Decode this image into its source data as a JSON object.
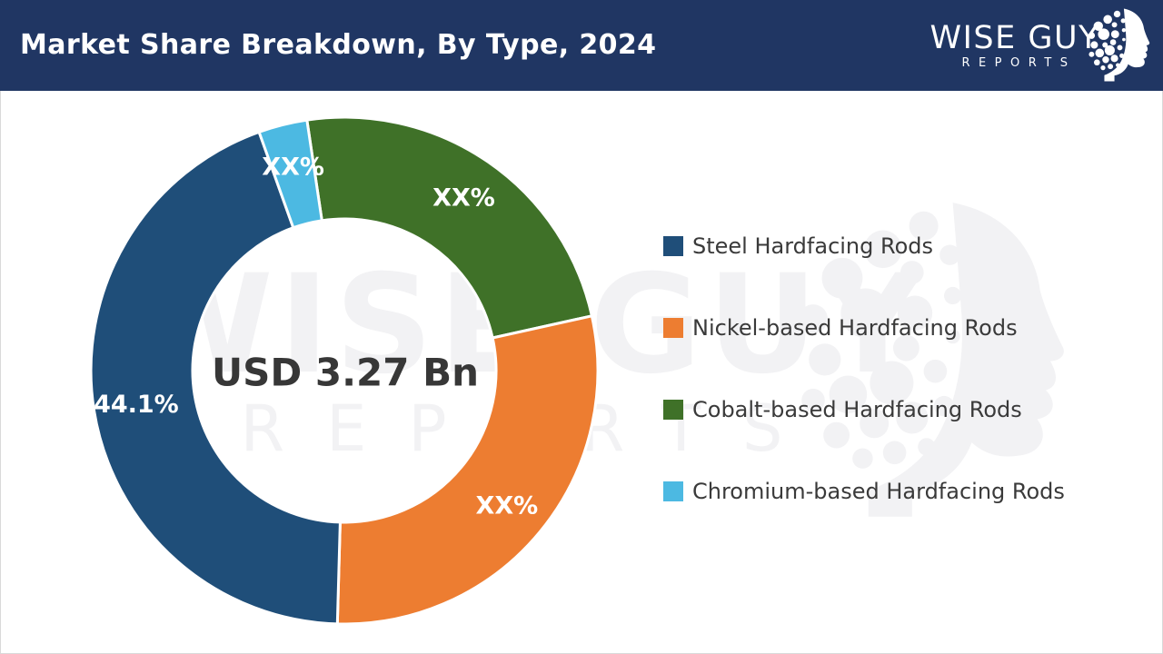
{
  "header": {
    "title": "Market Share Breakdown, By Type, 2024",
    "logo": {
      "line1": "WISE GUY",
      "line2": "REPORTS"
    }
  },
  "watermark": {
    "line1": "WISE GUY",
    "line2": "REPORTS"
  },
  "chart_data": {
    "type": "pie",
    "variant": "donut",
    "title": "Market Share Breakdown, By Type, 2024",
    "center_label": "USD 3.27 Bn",
    "rotation": "clockwise",
    "start_angle_clockwise_from_top_deg": -8.5,
    "legend_position": "right",
    "segments": [
      {
        "name": "Cobalt-based Hardfacing Rods",
        "value_pct": 23.9,
        "displayed_label": "XX%",
        "color": "#3f7128"
      },
      {
        "name": "Nickel-based Hardfacing Rods",
        "value_pct": 28.9,
        "displayed_label": "XX%",
        "color": "#ed7d31"
      },
      {
        "name": "Steel Hardfacing Rods",
        "value_pct": 44.1,
        "displayed_label": "44.1%",
        "color": "#1f4e79"
      },
      {
        "name": "Chromium-based Hardfacing Rods",
        "value_pct": 3.1,
        "displayed_label": "XX%",
        "color": "#4cb9e2"
      }
    ],
    "legend": [
      {
        "label": "Steel Hardfacing Rods",
        "color": "#1f4e79"
      },
      {
        "label": "Nickel-based Hardfacing Rods",
        "color": "#ed7d31"
      },
      {
        "label": "Cobalt-based Hardfacing Rods",
        "color": "#3f7128"
      },
      {
        "label": "Chromium-based Hardfacing Rods",
        "color": "#4cb9e2"
      }
    ]
  },
  "colors": {
    "header_bg": "#203663",
    "slice_label": "#ffffff",
    "center_text": "#373737",
    "legend_text": "#3a3a3a",
    "watermark": "#f2f2f4",
    "frame_border": "#d9d9d9"
  }
}
